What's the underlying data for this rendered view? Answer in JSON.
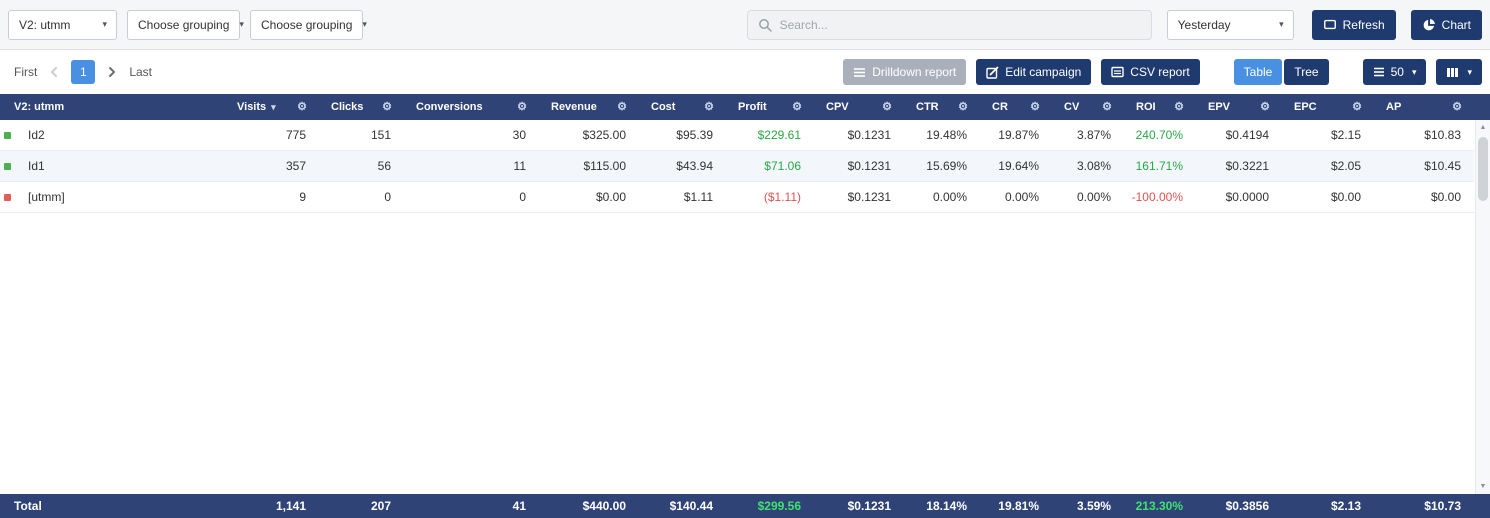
{
  "toolbar": {
    "campaign_select": "V2: utmm",
    "grouping1": "Choose grouping",
    "grouping2": "Choose grouping",
    "search_placeholder": "Search...",
    "date_range": "Yesterday",
    "refresh_label": "Refresh",
    "chart_label": "Chart"
  },
  "pagination": {
    "first": "First",
    "page": "1",
    "last": "Last"
  },
  "actions": {
    "drilldown": "Drilldown report",
    "edit_campaign": "Edit campaign",
    "csv": "CSV report",
    "table_view": "Table",
    "tree_view": "Tree",
    "rows_per_page": "50"
  },
  "table": {
    "name_header": "V2: utmm",
    "sorted_column": "Visits",
    "columns": [
      "Visits",
      "Clicks",
      "Conversions",
      "Revenue",
      "Cost",
      "Profit",
      "CPV",
      "CTR",
      "CR",
      "CV",
      "ROI",
      "EPV",
      "EPC",
      "AP"
    ],
    "colored_value_indexes": [
      5,
      10
    ],
    "rows": [
      {
        "status": "green",
        "name": "Id2",
        "values": [
          "775",
          "151",
          "30",
          "$325.00",
          "$95.39",
          "$229.61",
          "$0.1231",
          "19.48%",
          "19.87%",
          "3.87%",
          "240.70%",
          "$0.4194",
          "$2.15",
          "$10.83"
        ]
      },
      {
        "status": "green",
        "name": "Id1",
        "values": [
          "357",
          "56",
          "11",
          "$115.00",
          "$43.94",
          "$71.06",
          "$0.1231",
          "15.69%",
          "19.64%",
          "3.08%",
          "161.71%",
          "$0.3221",
          "$2.05",
          "$10.45"
        ]
      },
      {
        "status": "red",
        "name": "[utmm]",
        "values": [
          "9",
          "0",
          "0",
          "$0.00",
          "$1.11",
          "($1.11)",
          "$0.1231",
          "0.00%",
          "0.00%",
          "0.00%",
          "-100.00%",
          "$0.0000",
          "$0.00",
          "$0.00"
        ]
      }
    ],
    "total": {
      "label": "Total",
      "values": [
        "1,141",
        "207",
        "41",
        "$440.00",
        "$140.44",
        "$299.56",
        "$0.1231",
        "18.14%",
        "19.81%",
        "3.59%",
        "213.30%",
        "$0.3856",
        "$2.13",
        "$10.73"
      ]
    }
  },
  "colors": {
    "accent_blue": "#4990e2",
    "button_navy": "#1e3a6e",
    "header_navy": "#2f4377",
    "positive_green": "#28a745",
    "negative_red": "#e25252",
    "footer_green": "#3fe26e",
    "indicator_green": "#4caf50",
    "indicator_red": "#e35d5d",
    "disabled_gray": "#a9b0bc"
  }
}
